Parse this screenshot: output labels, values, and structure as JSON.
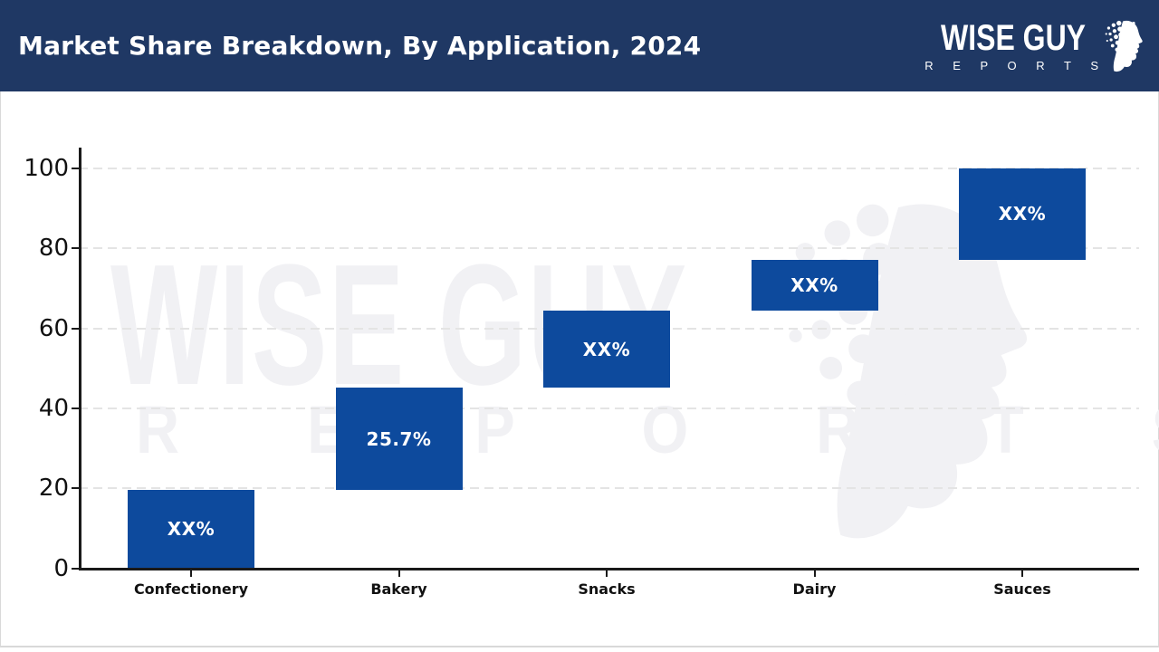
{
  "header": {
    "title": "Market Share Breakdown, By Application, 2024",
    "bg_color": "#1f3864",
    "logo": {
      "line1": "WISE GUY",
      "line2": "R E P O R T S",
      "color": "#ffffff"
    }
  },
  "watermark": {
    "line1": "WISE GUY",
    "line2": "R E P O R T S",
    "color": "#f1f1f4"
  },
  "chart_data": {
    "type": "bar",
    "subtype": "floating-waterfall",
    "title": "Market Share Breakdown, By Application, 2024",
    "categories": [
      "Confectionery",
      "Bakery",
      "Snacks",
      "Dairy",
      "Sauces"
    ],
    "segments": [
      {
        "category": "Confectionery",
        "from": 0,
        "to": 19.5,
        "label": "XX%"
      },
      {
        "category": "Bakery",
        "from": 19.5,
        "to": 45.2,
        "label": "25.7%"
      },
      {
        "category": "Snacks",
        "from": 45.2,
        "to": 64.4,
        "label": "XX%"
      },
      {
        "category": "Dairy",
        "from": 64.5,
        "to": 77.1,
        "label": "XX%"
      },
      {
        "category": "Sauces",
        "from": 77.1,
        "to": 100,
        "label": "XX%"
      }
    ],
    "yticks": [
      0,
      20,
      40,
      60,
      80,
      100
    ],
    "ylim": [
      0,
      105
    ],
    "xlabel": "",
    "ylabel": "",
    "bar_color": "#0d4a9d",
    "value_label_color": "#ffffff",
    "grid": "horizontal-dashed",
    "legend": "none"
  }
}
